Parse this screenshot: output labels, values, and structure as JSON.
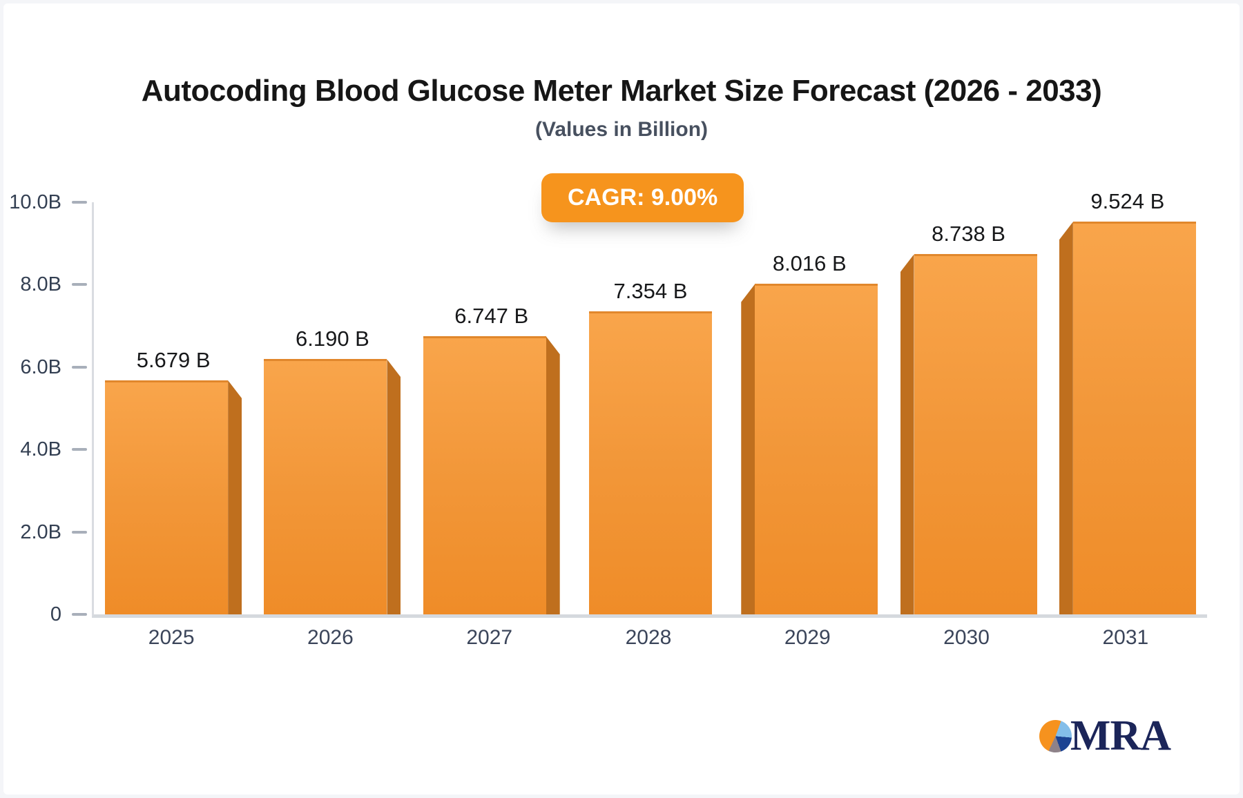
{
  "header": {
    "title": "Autocoding Blood Glucose Meter Market Size Forecast (2026 - 2033)",
    "subtitle": "(Values in Billion)"
  },
  "badge": {
    "label": "CAGR: 9.00%",
    "background": "#f6941d",
    "text_color": "#ffffff"
  },
  "chart_data": {
    "type": "bar",
    "title": "Autocoding Blood Glucose Meter Market Size Forecast (2026 - 2033)",
    "subtitle": "(Values in Billion)",
    "cagr": "9.00%",
    "categories": [
      "2025",
      "2026",
      "2027",
      "2028",
      "2029",
      "2030",
      "2031"
    ],
    "values": [
      5.679,
      6.19,
      6.747,
      7.354,
      8.016,
      8.738,
      9.524
    ],
    "value_labels": [
      "5.679 B",
      "6.190 B",
      "6.747 B",
      "7.354 B",
      "8.016 B",
      "8.738 B",
      "9.524 B"
    ],
    "ylim": [
      0,
      10
    ],
    "y_ticks": [
      {
        "value": 0,
        "label": "0"
      },
      {
        "value": 2,
        "label": "2.0B"
      },
      {
        "value": 4,
        "label": "4.0B"
      },
      {
        "value": 6,
        "label": "6.0B"
      },
      {
        "value": 8,
        "label": "8.0B"
      },
      {
        "value": 10,
        "label": "10.0B"
      }
    ],
    "grid": false,
    "legend": false,
    "bar_colors": {
      "face_top": "#f9a54b",
      "face_bottom": "#ef8c28",
      "side": "#bf6f1e"
    }
  },
  "logo": {
    "text": "MRA",
    "text_color": "#1b2559",
    "pie_slices": [
      {
        "name": "light-blue-slice",
        "color": "#84bee9"
      },
      {
        "name": "navy-slice",
        "color": "#1c4392"
      },
      {
        "name": "gray-slice",
        "color": "#8e8289"
      },
      {
        "name": "orange-slice",
        "color": "#f6921e"
      }
    ]
  }
}
